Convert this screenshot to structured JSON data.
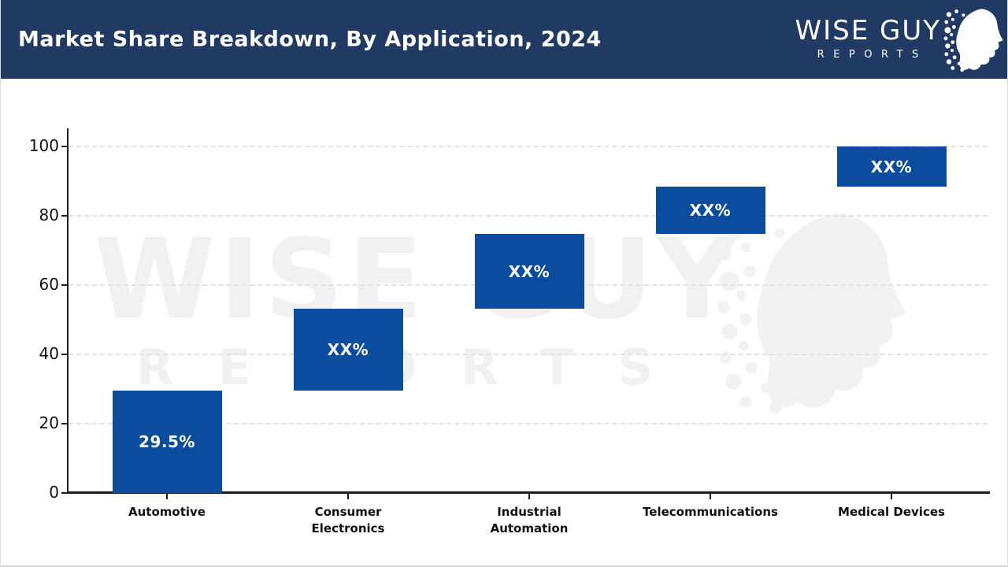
{
  "header": {
    "title": "Market Share Breakdown, By Application, 2024",
    "background_color": "#213A64",
    "logo": {
      "line1": "WISE GUY",
      "line2": "REPORTS"
    }
  },
  "watermark": {
    "line1": "WISE GUY",
    "line2": "REPORTS"
  },
  "chart_data": {
    "type": "bar",
    "subtype": "waterfall",
    "title": "Market Share Breakdown, By Application, 2024",
    "categories": [
      "Automotive",
      "Consumer Electronics",
      "Industrial Automation",
      "Telecommunications",
      "Medical Devices"
    ],
    "category_label_lines": [
      [
        "Automotive"
      ],
      [
        "Consumer",
        "Electronics"
      ],
      [
        "Industrial",
        "Automation"
      ],
      [
        "Telecommunications"
      ],
      [
        "Medical Devices"
      ]
    ],
    "series": [
      {
        "name": "Market Share (%)",
        "segments": [
          {
            "category": "Automotive",
            "start": 0,
            "end": 29.5,
            "label": "29.5%"
          },
          {
            "category": "Consumer Electronics",
            "start": 29.5,
            "end": 53.2,
            "label": "XX%"
          },
          {
            "category": "Industrial Automation",
            "start": 53.2,
            "end": 74.7,
            "label": "XX%"
          },
          {
            "category": "Telecommunications",
            "start": 74.7,
            "end": 88.4,
            "label": "XX%"
          },
          {
            "category": "Medical Devices",
            "start": 88.4,
            "end": 100,
            "label": "XX%"
          }
        ]
      }
    ],
    "xlabel": "",
    "ylabel": "",
    "ylim": [
      0,
      105
    ],
    "yticks": [
      0,
      20,
      40,
      60,
      80,
      100
    ],
    "grid": "horizontal-dashed",
    "legend": "none",
    "bar_color": "#0C4C9F",
    "bar_label_color": "#FFFFFF",
    "axis_color": "#1C1C1C",
    "gridline_color": "#E3E3E3"
  }
}
